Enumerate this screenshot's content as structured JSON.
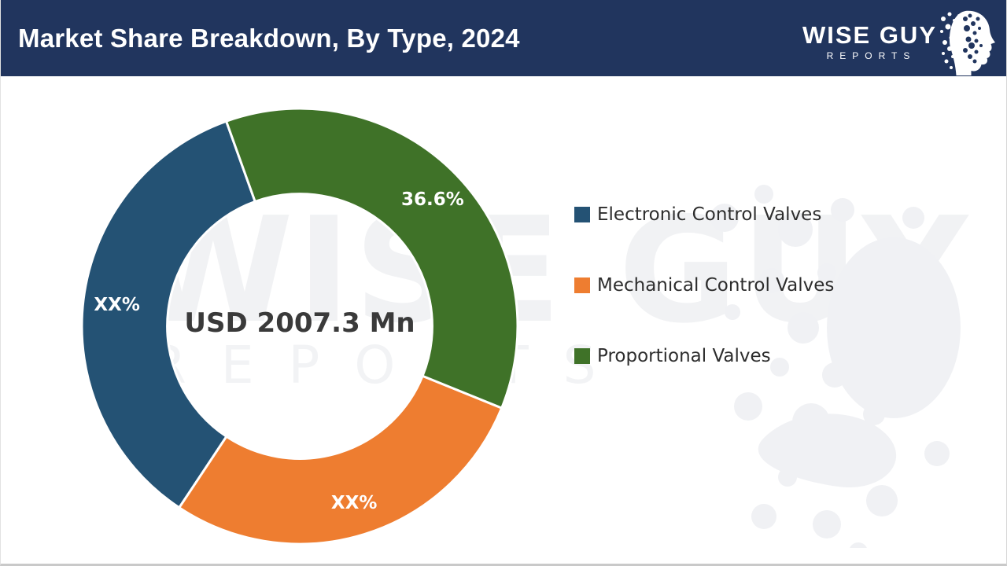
{
  "header": {
    "title": "Market Share Breakdown, By Type, 2024",
    "logo": {
      "brand_line1": "WISE GUY",
      "brand_line2": "REPORTS"
    }
  },
  "watermark": {
    "line1": "WISE GUY",
    "line2": "REPORTS"
  },
  "chart_data": {
    "type": "pie",
    "subtype": "donut",
    "title": "Market Share Breakdown, By Type, 2024",
    "center_label": "USD 2007.3 Mn",
    "start_angle_deg": 109.7,
    "direction": "counterclockwise",
    "inner_radius_ratio": 0.608,
    "legend_position": "right",
    "segments": [
      {
        "name": "Electronic Control Valves",
        "label": "XX%",
        "value_pct": 35.2,
        "color": "#245274"
      },
      {
        "name": "Mechanical Control Valves",
        "label": "XX%",
        "value_pct": 28.2,
        "color": "#ee7d30"
      },
      {
        "name": "Proportional Valves",
        "label": "36.6%",
        "value_pct": 36.6,
        "color": "#3f7228"
      }
    ]
  },
  "colors": {
    "header_bg": "#21355e",
    "center_text": "#3a3a3a",
    "legend_text": "#2d2d2d",
    "watermark": "#f1f2f4",
    "segment_divider": "#ffffff"
  }
}
